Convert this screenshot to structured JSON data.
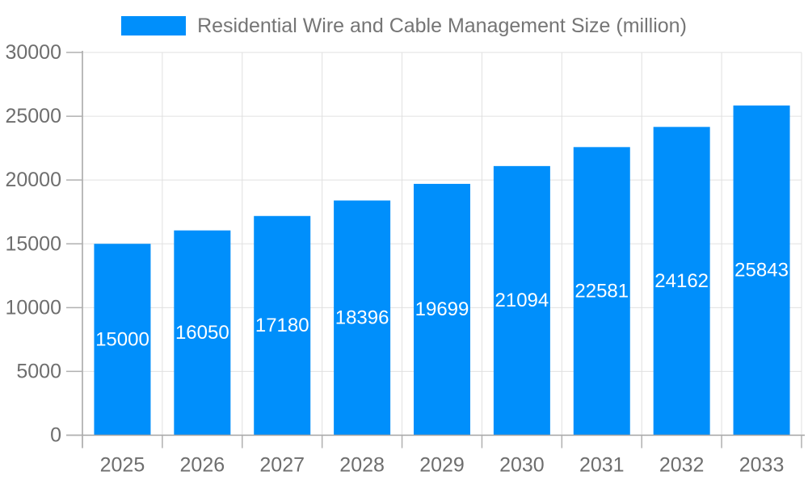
{
  "chart_data": {
    "type": "bar",
    "title": "",
    "categories": [
      "2025",
      "2026",
      "2027",
      "2028",
      "2029",
      "2030",
      "2031",
      "2032",
      "2033"
    ],
    "series": [
      {
        "name": "Residential Wire and Cable Management Size (million)",
        "values": [
          15000,
          16050,
          17180,
          18396,
          19699,
          21094,
          22581,
          24162,
          25843
        ]
      }
    ],
    "xlabel": "",
    "ylabel": "",
    "ylim": [
      0,
      30000
    ],
    "y_ticks": [
      0,
      5000,
      10000,
      15000,
      20000,
      25000,
      30000
    ],
    "grid": true,
    "legend_position": "top-center",
    "data_labels": "inside-center",
    "colors": {
      "bar": "#008FFB",
      "grid_line": "#E0E0E0",
      "axis_line": "#A3A3A3",
      "tick_mark": "#B0B0B0",
      "tick_label": "#6E6E6E",
      "legend_text": "#757575",
      "data_label": "#FFFFFF",
      "background": "#FFFFFF"
    }
  }
}
